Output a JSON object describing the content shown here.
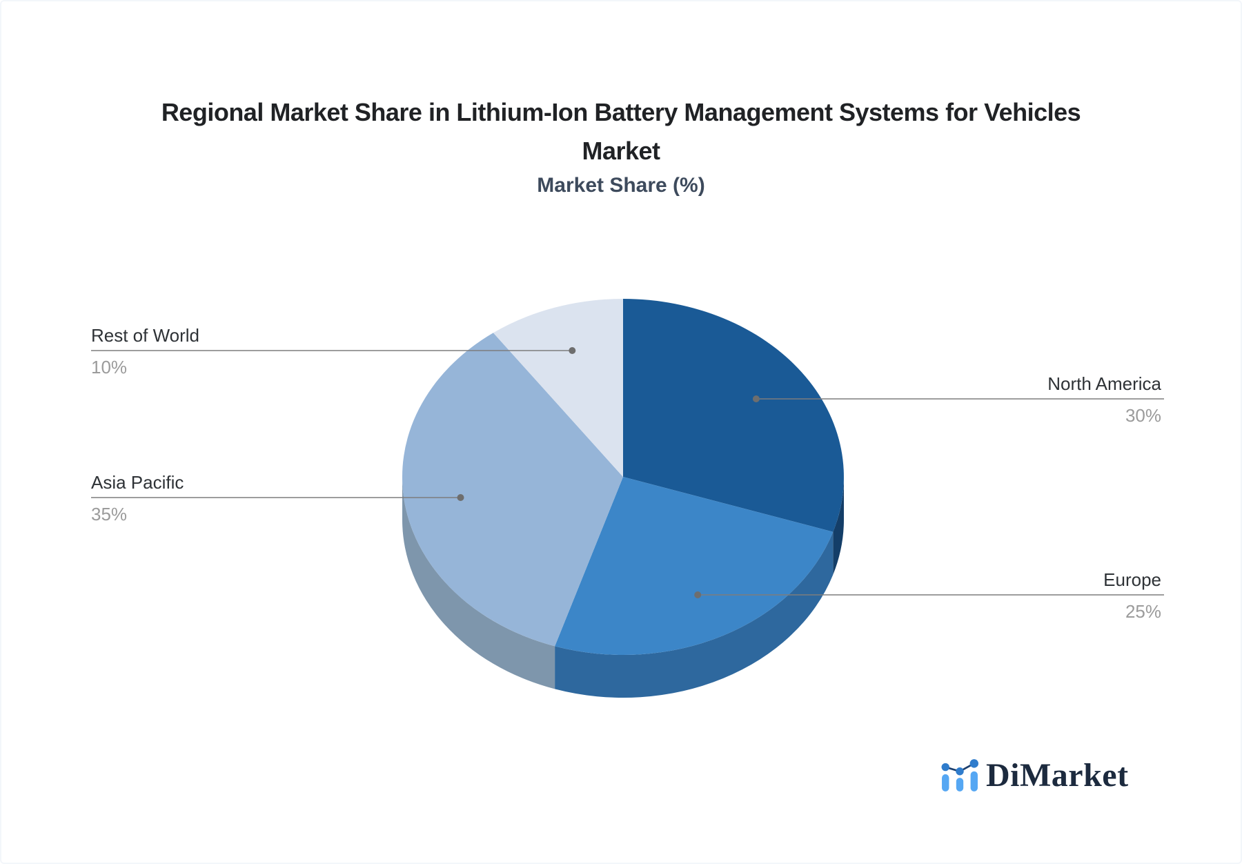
{
  "header": {
    "title": "Regional Market Share in Lithium-Ion Battery Management Systems for Vehicles Market",
    "title_lines": [
      "Regional Market Share in Lithium-Ion Battery Management Systems for Vehicles",
      "Market"
    ],
    "subtitle": "Market Share (%)"
  },
  "chart_data": {
    "type": "pie",
    "is_3d": true,
    "title": "Regional Market Share in Lithium-Ion Battery Management Systems for Vehicles Market",
    "subtitle": "Market Share (%)",
    "direction": "clockwise",
    "start_angle_deg": 0,
    "labels": [
      "North America",
      "Europe",
      "Asia Pacific",
      "Rest of World"
    ],
    "values": [
      30,
      25,
      35,
      10
    ],
    "value_labels": [
      "30%",
      "25%",
      "35%",
      "10%"
    ],
    "slice_colors": [
      "#1a5a96",
      "#3c86c8",
      "#96b5d8",
      "#dbe3ef"
    ],
    "slice_side_colors": [
      "#143e68",
      "#2e689e",
      "#7e96ac",
      "#b9c6d8"
    ],
    "connector_line_color": "#7d7d7d",
    "connector_dot_color": "#6e6e6e",
    "label_color": "#2e3236",
    "value_color": "#9b9b9b",
    "legend": "none"
  },
  "logo": {
    "brand": "DiMarket",
    "icon": "bar-chart-trend-icon",
    "bar_color": "#55a7f3",
    "dot_color": "#2f7ccc",
    "trend_line_color": "#1c3f6e",
    "text_color": "#1c2a3e"
  }
}
